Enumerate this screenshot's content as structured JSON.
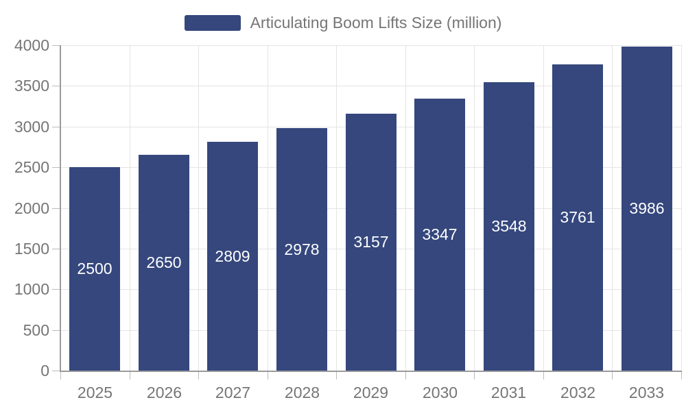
{
  "chart_data": {
    "type": "bar",
    "title": "Articulating Boom Lifts Size (million)",
    "series": [
      {
        "name": "Articulating Boom Lifts Size (million)",
        "values": [
          2500,
          2650,
          2809,
          2978,
          3157,
          3347,
          3548,
          3761,
          3986
        ]
      }
    ],
    "categories": [
      "2025",
      "2026",
      "2027",
      "2028",
      "2029",
      "2030",
      "2031",
      "2032",
      "2033"
    ],
    "xlabel": "",
    "ylabel": "",
    "ylim": [
      0,
      4000
    ],
    "yticks": [
      0,
      500,
      1000,
      1500,
      2000,
      2500,
      3000,
      3500,
      4000
    ],
    "grid": true,
    "legend_position": "top",
    "colors": {
      "bar": "#35477D",
      "value_label": "#ffffff",
      "axis_text": "#757575",
      "gridline": "#e4e4e4",
      "axis_line": "#9a9a9a"
    }
  }
}
